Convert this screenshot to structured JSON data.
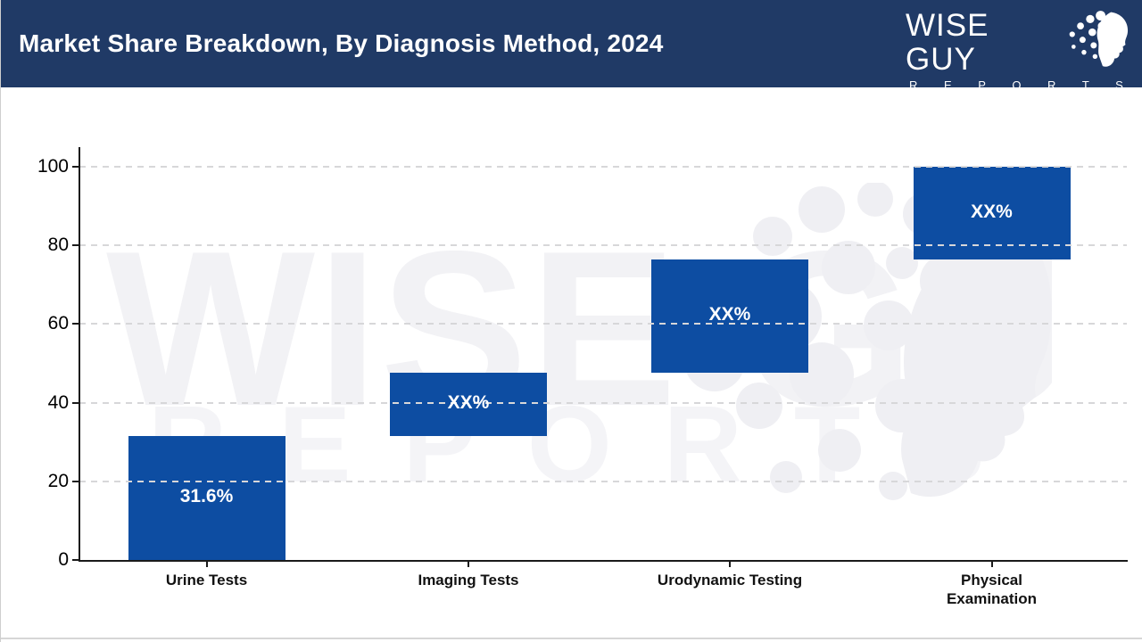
{
  "header": {
    "title": "Market Share Breakdown, By Diagnosis Method, 2024",
    "logo": {
      "line1": "WISE GUY",
      "line2": "R E P O R T S"
    }
  },
  "watermark": {
    "line1": "WISE GUY",
    "line2": "REPORTS"
  },
  "colors": {
    "header_bg": "#203a66",
    "bar": "#0d4da2",
    "bar_label": "#ffffff",
    "grid": "#d7d7d9",
    "axis": "#1a1a1a",
    "watermark": "#f2f2f5"
  },
  "chart_data": {
    "type": "bar",
    "subtype": "floating-waterfall",
    "title": "Market Share Breakdown, By Diagnosis Method, 2024",
    "categories": [
      "Urine Tests",
      "Imaging Tests",
      "Urodynamic Testing",
      "Physical\nExamination"
    ],
    "segments": [
      {
        "category": "Urine Tests",
        "from": 0,
        "to": 31.6,
        "label": "31.6%"
      },
      {
        "category": "Imaging Tests",
        "from": 31.6,
        "to": 47.6,
        "label": "XX%"
      },
      {
        "category": "Urodynamic Testing",
        "from": 47.6,
        "to": 76.4,
        "label": "XX%"
      },
      {
        "category": "Physical Examination",
        "from": 76.4,
        "to": 100,
        "label": "XX%"
      }
    ],
    "xlabel": "",
    "ylabel": "",
    "yticks": [
      0,
      20,
      40,
      60,
      80,
      100
    ],
    "ylim": [
      0,
      100
    ],
    "grid": "dashed-horizontal, drawn over bars",
    "legend": "none"
  }
}
